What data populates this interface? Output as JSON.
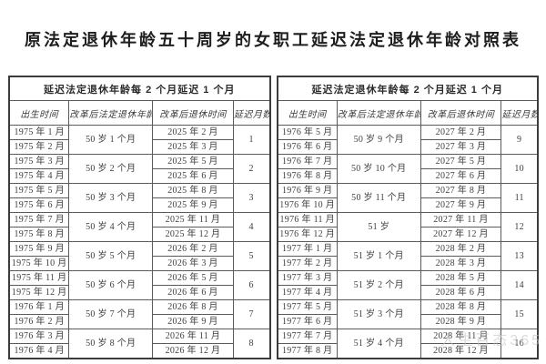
{
  "title": "原法定退休年龄五十周岁的女职工延迟法定退休年龄对照表",
  "watermark": "人生百态365",
  "tables": [
    {
      "span_header": "延迟法定退休年龄每 2 个月延迟 1 个月",
      "columns": [
        "出生时间",
        "改革后法定退休年龄",
        "改革后退休时间",
        "延迟月数"
      ],
      "groups": [
        {
          "births": [
            "1975 年 1 月",
            "1975 年 2 月"
          ],
          "age": "50 岁 1 个月",
          "retirements": [
            "2025 年 2 月",
            "2025 年 3 月"
          ],
          "delay_months": "1"
        },
        {
          "births": [
            "1975 年 3 月",
            "1975 年 4 月"
          ],
          "age": "50 岁 2 个月",
          "retirements": [
            "2025 年 5 月",
            "2025 年 6 月"
          ],
          "delay_months": "2"
        },
        {
          "births": [
            "1975 年 5 月",
            "1975 年 6 月"
          ],
          "age": "50 岁 3 个月",
          "retirements": [
            "2025 年 8 月",
            "2025 年 9 月"
          ],
          "delay_months": "3"
        },
        {
          "births": [
            "1975 年 7 月",
            "1975 年 8 月"
          ],
          "age": "50 岁 4 个月",
          "retirements": [
            "2025 年 11 月",
            "2025 年 12 月"
          ],
          "delay_months": "4"
        },
        {
          "births": [
            "1975 年 9 月",
            "1975 年 10 月"
          ],
          "age": "50 岁 5 个月",
          "retirements": [
            "2026 年 2 月",
            "2026 年 3 月"
          ],
          "delay_months": "5"
        },
        {
          "births": [
            "1975 年 11 月",
            "1975 年 12 月"
          ],
          "age": "50 岁 6 个月",
          "retirements": [
            "2026 年 5 月",
            "2026 年 6 月"
          ],
          "delay_months": "6"
        },
        {
          "births": [
            "1976 年 1 月",
            "1976 年 2 月"
          ],
          "age": "50 岁 7 个月",
          "retirements": [
            "2026 年 8 月",
            "2026 年 9 月"
          ],
          "delay_months": "7"
        },
        {
          "births": [
            "1976 年 3 月",
            "1976 年 4 月"
          ],
          "age": "50 岁 8 个月",
          "retirements": [
            "2026 年 11 月",
            "2026 年 12 月"
          ],
          "delay_months": "8"
        }
      ]
    },
    {
      "span_header": "延迟法定退休年龄每 2 个月延迟 1 个月",
      "columns": [
        "出生时间",
        "改革后法定退休年龄",
        "改革后退休时间",
        "延迟月数"
      ],
      "groups": [
        {
          "births": [
            "1976 年 5 月",
            "1976 年 6 月"
          ],
          "age": "50 岁 9 个月",
          "retirements": [
            "2027 年 2 月",
            "2027 年 3 月"
          ],
          "delay_months": "9"
        },
        {
          "births": [
            "1976 年 7 月",
            "1976 年 8 月"
          ],
          "age": "50 岁 10 个月",
          "retirements": [
            "2027 年 5 月",
            "2027 年 6 月"
          ],
          "delay_months": "10"
        },
        {
          "births": [
            "1976 年 9 月",
            "1976 年 10 月"
          ],
          "age": "50 岁 11 个月",
          "retirements": [
            "2027 年 8 月",
            "2027 年 9 月"
          ],
          "delay_months": "11"
        },
        {
          "births": [
            "1976 年 11 月",
            "1976 年 12 月"
          ],
          "age": "51 岁",
          "retirements": [
            "2027 年 11 月",
            "2027 年 12 月"
          ],
          "delay_months": "12"
        },
        {
          "births": [
            "1977 年 1 月",
            "1977 年 2 月"
          ],
          "age": "51 岁 1 个月",
          "retirements": [
            "2028 年 2 月",
            "2028 年 3 月"
          ],
          "delay_months": "13"
        },
        {
          "births": [
            "1977 年 3 月",
            "1977 年 4 月"
          ],
          "age": "51 岁 2 个月",
          "retirements": [
            "2028 年 5 月",
            "2028 年 6 月"
          ],
          "delay_months": "14"
        },
        {
          "births": [
            "1977 年 5 月",
            "1977 年 6 月"
          ],
          "age": "51 岁 3 个月",
          "retirements": [
            "2028 年 8 月",
            "2028 年 9 月"
          ],
          "delay_months": "15"
        },
        {
          "births": [
            "1977 年 7 月",
            "1977 年 8 月"
          ],
          "age": "51 岁 4 个月",
          "retirements": [
            "2028 年 11 月",
            "2028 年 12 月"
          ],
          "delay_months": "16"
        }
      ]
    }
  ]
}
